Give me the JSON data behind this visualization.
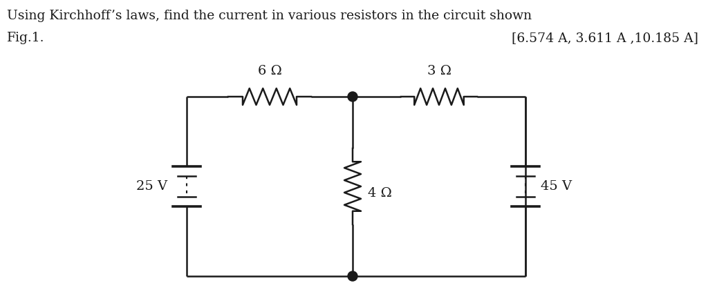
{
  "title_line1": "Using Kirchhoff’s laws, find the current in various resistors in the circuit shown",
  "title_line2": "Fig.1.",
  "answer": "[6.574 A, 3.611 A ,10.185 A]",
  "bg_color": "#ffffff",
  "line_color": "#1a1a1a",
  "text_color": "#1a1a1a",
  "resistor_6_label": "6 Ω",
  "resistor_3_label": "3 Ω",
  "resistor_4_label": "4 Ω",
  "battery_25_label": "25 V",
  "battery_45_label": "45 V",
  "font_size_title": 13.5,
  "font_size_labels": 13
}
